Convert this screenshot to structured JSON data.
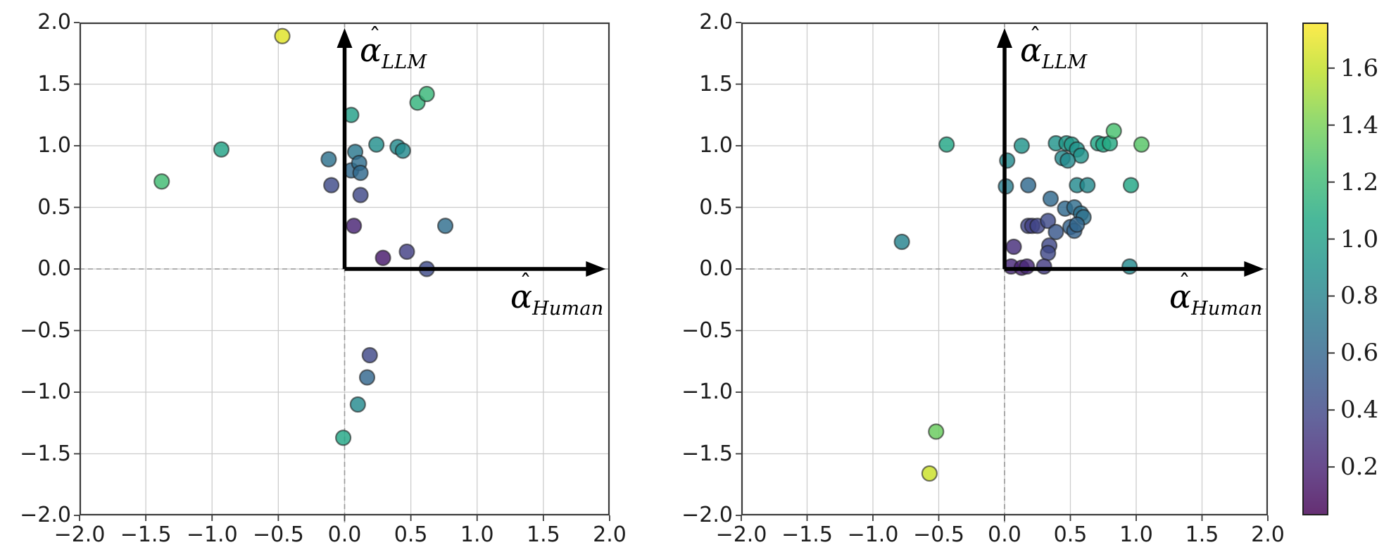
{
  "figure": {
    "background": "#ffffff",
    "gridline_color": "#cccccc",
    "dashed_line_color": "#999999",
    "spine_color": "#3a3a3a",
    "arrow_color": "#000000",
    "point_stroke": "#1f1f1f",
    "point_fill_opacity": 0.82
  },
  "chart_data": [
    {
      "type": "scatter",
      "side": "left",
      "xlabel": {
        "base": "α",
        "hat": "ˆ",
        "sub": "Human"
      },
      "ylabel": {
        "base": "α",
        "hat": "ˆ",
        "sub": "LLM"
      },
      "xlim": [
        -2.0,
        2.0
      ],
      "ylim": [
        -2.0,
        2.0
      ],
      "grid": true,
      "xtick_values": [
        -2.0,
        -1.5,
        -1.0,
        -0.5,
        0.0,
        0.5,
        1.0,
        1.5,
        2.0
      ],
      "xtick_labels": [
        "−2.0",
        "−1.5",
        "−1.0",
        "−0.5",
        "0.0",
        "0.5",
        "1.0",
        "1.5",
        "2.0"
      ],
      "ytick_values": [
        2.0,
        1.5,
        1.0,
        0.5,
        0.0,
        -0.5,
        -1.0,
        -1.5,
        -2.0
      ],
      "ytick_labels": [
        "2.0",
        "1.5",
        "1.0",
        "0.5",
        "0.0",
        "−0.5",
        "−1.0",
        "−1.5",
        "−2.0"
      ],
      "points": [
        {
          "x": -0.47,
          "y": 1.89,
          "v": 1.68
        },
        {
          "x": -0.93,
          "y": 0.97,
          "v": 1.02
        },
        {
          "x": -1.38,
          "y": 0.71,
          "v": 1.22
        },
        {
          "x": 0.05,
          "y": 1.25,
          "v": 1.0
        },
        {
          "x": 0.55,
          "y": 1.35,
          "v": 1.15
        },
        {
          "x": 0.62,
          "y": 1.42,
          "v": 1.18
        },
        {
          "x": 0.24,
          "y": 1.01,
          "v": 0.88
        },
        {
          "x": 0.4,
          "y": 0.99,
          "v": 0.85
        },
        {
          "x": 0.44,
          "y": 0.96,
          "v": 0.85
        },
        {
          "x": -0.12,
          "y": 0.89,
          "v": 0.68
        },
        {
          "x": 0.08,
          "y": 0.95,
          "v": 0.72
        },
        {
          "x": 0.05,
          "y": 0.8,
          "v": 0.62
        },
        {
          "x": 0.11,
          "y": 0.86,
          "v": 0.65
        },
        {
          "x": 0.12,
          "y": 0.78,
          "v": 0.62
        },
        {
          "x": -0.1,
          "y": 0.68,
          "v": 0.42
        },
        {
          "x": 0.12,
          "y": 0.6,
          "v": 0.4
        },
        {
          "x": 0.07,
          "y": 0.35,
          "v": 0.2
        },
        {
          "x": 0.76,
          "y": 0.35,
          "v": 0.65
        },
        {
          "x": 0.47,
          "y": 0.14,
          "v": 0.35
        },
        {
          "x": 0.29,
          "y": 0.09,
          "v": 0.15
        },
        {
          "x": 0.62,
          "y": 0.0,
          "v": 0.42
        },
        {
          "x": 0.19,
          "y": -0.7,
          "v": 0.4
        },
        {
          "x": 0.17,
          "y": -0.88,
          "v": 0.6
        },
        {
          "x": 0.1,
          "y": -1.1,
          "v": 0.85
        },
        {
          "x": -0.01,
          "y": -1.37,
          "v": 1.05
        }
      ]
    },
    {
      "type": "scatter",
      "side": "right",
      "xlabel": {
        "base": "α",
        "hat": "ˆ",
        "sub": "Human"
      },
      "ylabel": {
        "base": "α",
        "hat": "ˆ",
        "sub": "LLM"
      },
      "xlim": [
        -2.0,
        2.0
      ],
      "ylim": [
        -2.0,
        2.0
      ],
      "grid": true,
      "xtick_values": [
        -2.0,
        -1.5,
        -1.0,
        -0.5,
        0.0,
        0.5,
        1.0,
        1.5,
        2.0
      ],
      "xtick_labels": [
        "−2.0",
        "−1.5",
        "−1.0",
        "−0.5",
        "0.0",
        "0.5",
        "1.0",
        "1.5",
        "2.0"
      ],
      "ytick_values": [
        2.0,
        1.5,
        1.0,
        0.5,
        0.0,
        -0.5,
        -1.0,
        -1.5,
        -2.0
      ],
      "ytick_labels": [
        "2.0",
        "1.5",
        "1.0",
        "0.5",
        "0.0",
        "−0.5",
        "−1.0",
        "−1.5",
        "−2.0"
      ],
      "points": [
        {
          "x": -0.44,
          "y": 1.01,
          "v": 1.05
        },
        {
          "x": -0.78,
          "y": 0.22,
          "v": 0.8
        },
        {
          "x": -0.52,
          "y": -1.32,
          "v": 1.35
        },
        {
          "x": -0.57,
          "y": -1.66,
          "v": 1.62
        },
        {
          "x": 0.13,
          "y": 1.0,
          "v": 0.92
        },
        {
          "x": 0.39,
          "y": 1.02,
          "v": 0.92
        },
        {
          "x": 0.47,
          "y": 1.02,
          "v": 0.95
        },
        {
          "x": 0.51,
          "y": 1.01,
          "v": 0.95
        },
        {
          "x": 0.55,
          "y": 0.97,
          "v": 0.92
        },
        {
          "x": 0.58,
          "y": 0.92,
          "v": 0.92
        },
        {
          "x": 0.44,
          "y": 0.9,
          "v": 0.85
        },
        {
          "x": 0.48,
          "y": 0.88,
          "v": 0.85
        },
        {
          "x": 0.71,
          "y": 1.02,
          "v": 1.05
        },
        {
          "x": 0.75,
          "y": 1.01,
          "v": 1.05
        },
        {
          "x": 0.8,
          "y": 1.02,
          "v": 1.08
        },
        {
          "x": 0.83,
          "y": 1.12,
          "v": 1.25
        },
        {
          "x": 1.04,
          "y": 1.01,
          "v": 1.3
        },
        {
          "x": 0.02,
          "y": 0.88,
          "v": 0.85
        },
        {
          "x": 0.01,
          "y": 0.67,
          "v": 0.75
        },
        {
          "x": 0.18,
          "y": 0.68,
          "v": 0.62
        },
        {
          "x": 0.55,
          "y": 0.68,
          "v": 0.85
        },
        {
          "x": 0.63,
          "y": 0.68,
          "v": 0.85
        },
        {
          "x": 0.96,
          "y": 0.68,
          "v": 1.05
        },
        {
          "x": 0.35,
          "y": 0.57,
          "v": 0.62
        },
        {
          "x": 0.46,
          "y": 0.49,
          "v": 0.62
        },
        {
          "x": 0.53,
          "y": 0.5,
          "v": 0.65
        },
        {
          "x": 0.58,
          "y": 0.45,
          "v": 0.68
        },
        {
          "x": 0.6,
          "y": 0.42,
          "v": 0.68
        },
        {
          "x": 0.5,
          "y": 0.34,
          "v": 0.58
        },
        {
          "x": 0.53,
          "y": 0.31,
          "v": 0.58
        },
        {
          "x": 0.55,
          "y": 0.36,
          "v": 0.6
        },
        {
          "x": 0.18,
          "y": 0.35,
          "v": 0.38
        },
        {
          "x": 0.21,
          "y": 0.35,
          "v": 0.36
        },
        {
          "x": 0.25,
          "y": 0.35,
          "v": 0.38
        },
        {
          "x": 0.33,
          "y": 0.39,
          "v": 0.42
        },
        {
          "x": 0.39,
          "y": 0.3,
          "v": 0.5
        },
        {
          "x": 0.07,
          "y": 0.18,
          "v": 0.25
        },
        {
          "x": 0.34,
          "y": 0.19,
          "v": 0.4
        },
        {
          "x": 0.33,
          "y": 0.13,
          "v": 0.4
        },
        {
          "x": 0.05,
          "y": 0.02,
          "v": 0.22
        },
        {
          "x": 0.13,
          "y": 0.01,
          "v": 0.18
        },
        {
          "x": 0.17,
          "y": 0.02,
          "v": 0.22
        },
        {
          "x": 0.3,
          "y": 0.02,
          "v": 0.32
        },
        {
          "x": 0.95,
          "y": 0.02,
          "v": 0.85
        }
      ]
    }
  ],
  "colorbar": {
    "vmin": 0.03,
    "vmax": 1.76,
    "tick_values": [
      0.2,
      0.4,
      0.6,
      0.8,
      1.0,
      1.2,
      1.4,
      1.6
    ],
    "tick_labels": [
      "0.2",
      "0.4",
      "0.6",
      "0.8",
      "1.0",
      "1.2",
      "1.4",
      "1.6"
    ]
  }
}
